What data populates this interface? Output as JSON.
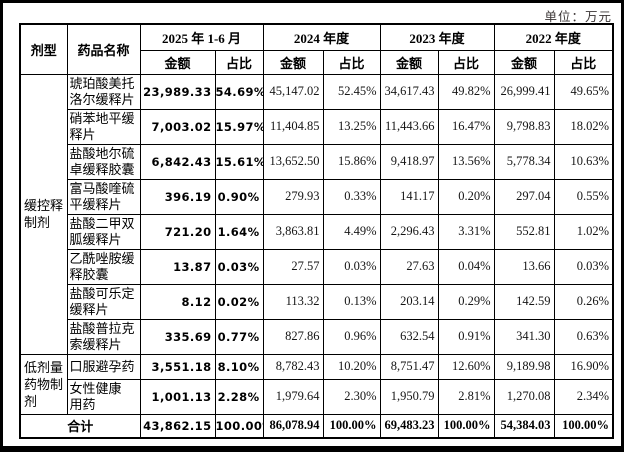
{
  "unit_label": "单位：万元",
  "table": {
    "headers": {
      "dosage_form": "剂型",
      "drug_name": "药品名称",
      "periods": [
        {
          "label": "2025 年 1-6 月"
        },
        {
          "label": "2024 年度"
        },
        {
          "label": "2023 年度"
        },
        {
          "label": "2022 年度"
        }
      ],
      "amount": "金额",
      "ratio": "占比"
    },
    "groups": [
      {
        "form": "缓控释\n制剂",
        "rows": [
          {
            "name": "琥珀酸美托\n洛尔缓释片",
            "values": [
              "23,989.33",
              "54.69%",
              "45,147.02",
              "52.45%",
              "34,617.43",
              "49.82%",
              "26,999.41",
              "49.65%"
            ]
          },
          {
            "name": "硝苯地平缓\n释片",
            "values": [
              "7,003.02",
              "15.97%",
              "11,404.85",
              "13.25%",
              "11,443.66",
              "16.47%",
              "9,798.83",
              "18.02%"
            ]
          },
          {
            "name": "盐酸地尔硫\n卓缓释胶囊",
            "values": [
              "6,842.43",
              "15.61%",
              "13,652.50",
              "15.86%",
              "9,418.97",
              "13.56%",
              "5,778.34",
              "10.63%"
            ]
          },
          {
            "name": "富马酸喹硫\n平缓释片",
            "values": [
              "396.19",
              "0.90%",
              "279.93",
              "0.33%",
              "141.17",
              "0.20%",
              "297.04",
              "0.55%"
            ]
          },
          {
            "name": "盐酸二甲双\n胍缓释片",
            "values": [
              "721.20",
              "1.64%",
              "3,863.81",
              "4.49%",
              "2,296.43",
              "3.31%",
              "552.81",
              "1.02%"
            ]
          },
          {
            "name": "乙酰唑胺缓\n释胶囊",
            "values": [
              "13.87",
              "0.03%",
              "27.57",
              "0.03%",
              "27.63",
              "0.04%",
              "13.66",
              "0.03%"
            ]
          },
          {
            "name": "盐酸可乐定\n缓释片",
            "values": [
              "8.12",
              "0.02%",
              "113.32",
              "0.13%",
              "203.14",
              "0.29%",
              "142.59",
              "0.26%"
            ]
          },
          {
            "name": "盐酸普拉克\n索缓释片",
            "values": [
              "335.69",
              "0.77%",
              "827.86",
              "0.96%",
              "632.54",
              "0.91%",
              "341.30",
              "0.63%"
            ]
          }
        ]
      },
      {
        "form": "低剂量\n药物制\n剂",
        "rows": [
          {
            "name": "口服避孕药",
            "values": [
              "3,551.18",
              "8.10%",
              "8,782.43",
              "10.20%",
              "8,751.47",
              "12.60%",
              "9,189.98",
              "16.90%"
            ]
          },
          {
            "name": "女性健康\n用药",
            "values": [
              "1,001.13",
              "2.28%",
              "1,979.64",
              "2.30%",
              "1,950.79",
              "2.81%",
              "1,270.08",
              "2.34%"
            ]
          }
        ]
      }
    ],
    "total": {
      "label": "合计",
      "values": [
        "43,862.15",
        "100.00%",
        "86,078.94",
        "100.00%",
        "69,483.23",
        "100.00%",
        "54,384.03",
        "100.00%"
      ]
    }
  }
}
